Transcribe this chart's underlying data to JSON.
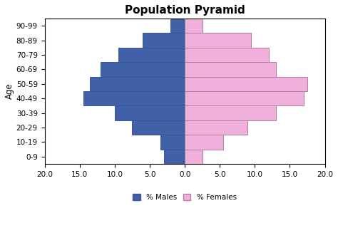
{
  "title": "Population Pyramid",
  "age_groups": [
    "0-9",
    "10-19",
    "20-29",
    "30-39",
    "40-49",
    "50-59",
    "60-69",
    "70-79",
    "80-89",
    "90-99"
  ],
  "males": [
    3.0,
    3.5,
    7.5,
    10.0,
    14.5,
    13.5,
    12.0,
    9.5,
    6.0,
    2.0
  ],
  "females": [
    2.5,
    5.5,
    9.0,
    13.0,
    17.0,
    17.5,
    13.0,
    12.0,
    9.5,
    2.5
  ],
  "male_color": "#4060A8",
  "female_color": "#F0B0DC",
  "male_edge_color": "#3A55A0",
  "female_edge_color": "#B08098",
  "xlim": [
    -20.0,
    20.0
  ],
  "xticks": [
    -20.0,
    -15.0,
    -10.0,
    -5.0,
    0.0,
    5.0,
    10.0,
    15.0,
    20.0
  ],
  "xticklabels": [
    "20.0",
    "15.0",
    "10.0",
    "5.0",
    "0.0",
    "5.0",
    "10.0",
    "15.0",
    "20.0"
  ],
  "ylabel": "Age",
  "bar_height": 1.0,
  "background_color": "#ffffff",
  "legend_males": "% Males",
  "legend_females": "% Females",
  "title_fontsize": 11,
  "axis_fontsize": 7.5,
  "label_fontsize": 8.5
}
